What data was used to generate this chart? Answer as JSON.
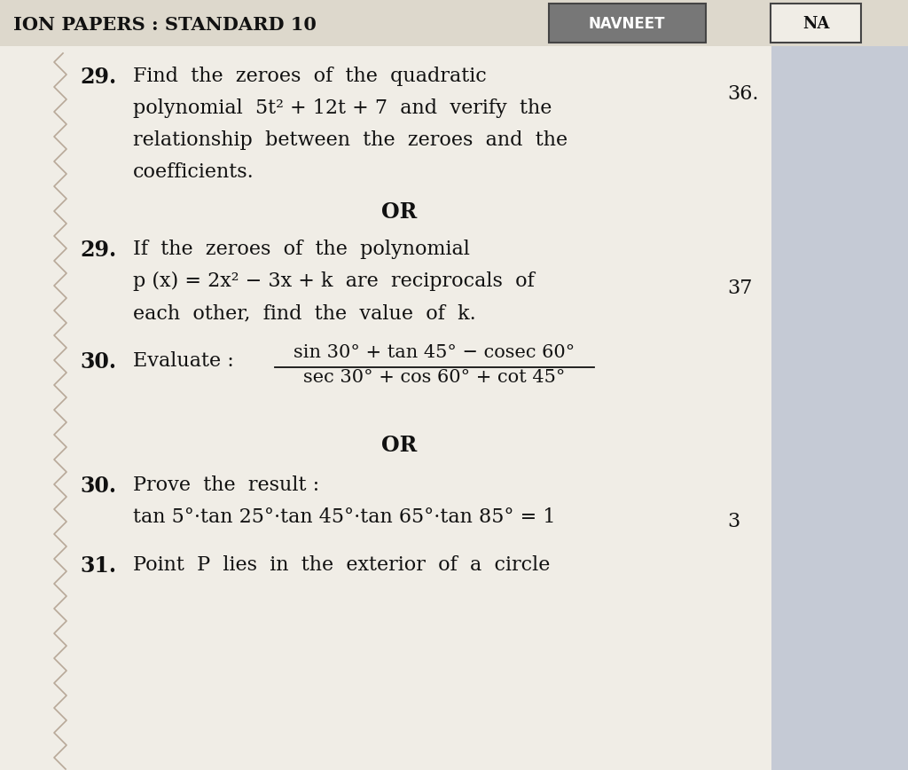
{
  "bg_color": "#e8e4dc",
  "page_color": "#f0ede6",
  "header_text": "ION PAPERS : STANDARD 10",
  "navneet_label": "NAVNEET",
  "na_label": "NA",
  "navneet_bg": "#666666",
  "q29a_number": "29.",
  "q29a_line1": "Find  the  zeroes  of  the  quadratic",
  "q29a_line2": "polynomial  5t² + 12t + 7  and  verify  the",
  "q29a_line3": "relationship  between  the  zeroes  and  the",
  "q29a_line4": "coefficients.",
  "or1": "OR",
  "q29b_number": "29.",
  "q29b_line1": "If  the  zeroes  of  the  polynomial",
  "q29b_line2": "p (x) = 2x² − 3x + k  are  reciprocals  of",
  "q29b_line3": "each  other,  find  the  value  of  k.",
  "right_num1": "36.",
  "right_num2": "37",
  "q30a_number": "30.",
  "q30a_text": "Evaluate :",
  "q30a_numer": "sin 30° + tan 45° − cosec 60°",
  "q30a_denom": "sec 30° + cos 60° + cot 45°",
  "or2": "OR",
  "q30b_number": "30.",
  "q30b_line1": "Prove  the  result :",
  "q30b_line2": "tan 5°·tan 25°·tan 45°·tan 65°·tan 85° = 1",
  "q31_number": "31.",
  "q31_line1": "Point  P  lies  in  the  exterior  of  a  circle",
  "right_num3": "3",
  "font_color": "#111111",
  "zigzag_color": "#b8a898",
  "shadow_color": "#c8ccd8",
  "header_color": "#111111"
}
